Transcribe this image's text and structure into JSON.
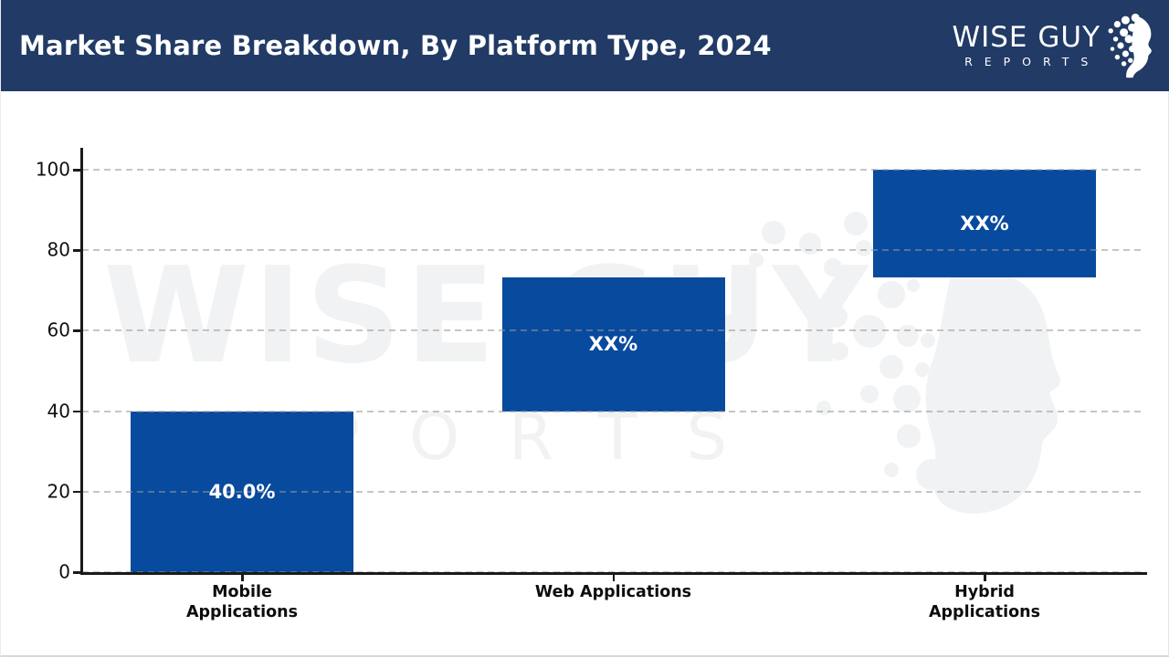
{
  "header": {
    "title": "Market Share Breakdown, By Platform Type, 2024",
    "logo": {
      "line1": "WISE GUY",
      "line2": "REPORTS"
    }
  },
  "watermark": {
    "line1": "WISE GUY",
    "line2": "REPORTS"
  },
  "colors": {
    "header_background": "#213a66",
    "bar": "#084a9e",
    "axis": "#1a1a1a",
    "grid": "#c9c9c9",
    "bar_label": "#ffffff",
    "watermark": "#f1f2f4"
  },
  "chart_data": {
    "type": "bar",
    "style": "waterfall (cumulative floating segments)",
    "title": "Market Share Breakdown, By Platform Type, 2024",
    "categories": [
      "Mobile Applications",
      "Web Applications",
      "Hybrid Applications"
    ],
    "bars": [
      {
        "category": "Mobile Applications",
        "lines": [
          "Mobile",
          "Applications"
        ],
        "start": 0,
        "end": 40,
        "value": 40,
        "label": "40.0%"
      },
      {
        "category": "Web Applications",
        "lines": [
          "Web Applications"
        ],
        "start": 40,
        "end": 73.3,
        "value": 33.3,
        "label": "XX%"
      },
      {
        "category": "Hybrid Applications",
        "lines": [
          "Hybrid",
          "Applications"
        ],
        "start": 73.3,
        "end": 100,
        "value": 26.7,
        "label": "XX%"
      }
    ],
    "xlabel": "",
    "ylabel": "",
    "ylim": [
      0,
      100
    ],
    "yticks": [
      0,
      20,
      40,
      60,
      80,
      100
    ],
    "grid": "horizontal dashed, drawn above bars",
    "legend": null,
    "notes": "XX% labels are redacted placeholder values; segment ends estimated from gridlines"
  }
}
